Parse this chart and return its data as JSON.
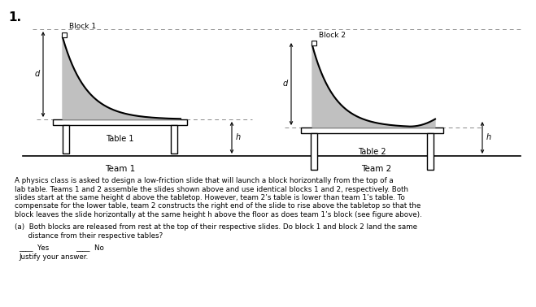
{
  "title_number": "1.",
  "team1_label": "Team 1",
  "team2_label": "Team 2",
  "block1_label": "Block 1",
  "block2_label": "Block 2",
  "table1_label": "Table 1",
  "table2_label": "Table 2",
  "d_label": "d",
  "h_label": "h",
  "paragraph_lines": [
    "A physics class is asked to design a low-friction slide that will launch a block horizontally from the top of a",
    "lab table. Teams 1 and 2 assemble the slides shown above and use identical blocks 1 and 2, respectively. Both",
    "slides start at the same height d above the tabletop. However, team 2’s table is lower than team 1’s table. To",
    "compensate for the lower table, team 2 constructs the right end of the slide to rise above the tabletop so that the",
    "block leaves the slide horizontally at the same height h above the floor as does team 1’s block (see figure above)."
  ],
  "question_a_lines": [
    "(a)  Both blocks are released from rest at the top of their respective slides. Do block 1 and block 2 land the same",
    "      distance from their respective tables?"
  ],
  "yes_label": "Yes",
  "no_label": "No",
  "justify_label": "Justify your answer.",
  "bg_color": "#ffffff",
  "slide_fill": "#c0c0c0",
  "text_color": "#000000",
  "dashed_color": "#888888",
  "line_color": "#000000"
}
